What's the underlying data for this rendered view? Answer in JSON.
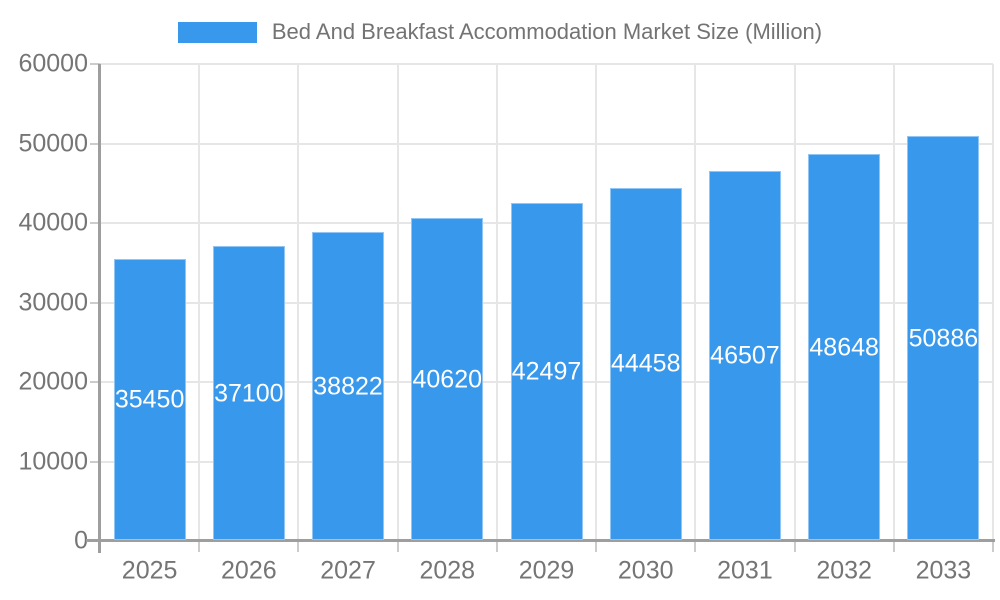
{
  "legend": {
    "label": "Bed And Breakfast Accommodation Market Size (Million)"
  },
  "chart_data": {
    "type": "bar",
    "title": "Bed And Breakfast Accommodation Market Size (Million)",
    "categories": [
      "2025",
      "2026",
      "2027",
      "2028",
      "2029",
      "2030",
      "2031",
      "2032",
      "2033"
    ],
    "values": [
      35450,
      37100,
      38822,
      40620,
      42497,
      44458,
      46507,
      48648,
      50886
    ],
    "xlabel": "",
    "ylabel": "",
    "ylim": [
      0,
      60000
    ],
    "yticks": [
      0,
      10000,
      20000,
      30000,
      40000,
      50000,
      60000
    ],
    "grid": true,
    "legend_position": "top-center",
    "bar_labels_inside": true,
    "colors": {
      "bar": "#3898EC",
      "bar_label": "#FFFFFF",
      "axis": "#9E9E9E",
      "gridline": "#E6E6E6",
      "tick": "#CCCCCC",
      "tick_label": "#757575",
      "legend_label": "#737373"
    }
  }
}
